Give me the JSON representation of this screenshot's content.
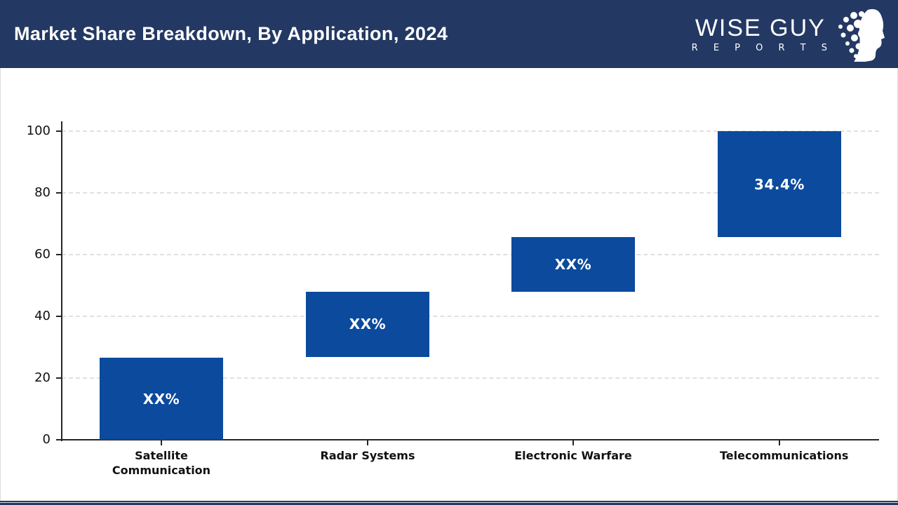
{
  "header": {
    "title": "Market Share Breakdown, By Application, 2024",
    "logo": {
      "line1": "WISE GUY",
      "line2": "R E P O R T S"
    }
  },
  "watermark": {
    "line1": "WISE GUY",
    "line2": "R E P O R T S"
  },
  "colors": {
    "header_bg": "#233963",
    "bar": "#0b4a9d",
    "bar_label": "#ffffff",
    "grid": "#e0e0e0",
    "axis": "#262626",
    "watermark": "#f2f2f2",
    "panel_border": "#d9d9d9"
  },
  "chart_data": {
    "type": "bar",
    "subtype": "floating-waterfall",
    "title": "Market Share Breakdown, By Application, 2024",
    "xlabel": "",
    "ylabel": "",
    "legend": "none",
    "grid": "horizontal-dashed",
    "ylim": [
      0,
      105
    ],
    "yticks": [
      0,
      20,
      40,
      60,
      80,
      100
    ],
    "categories": [
      "Satellite Communication",
      "Radar Systems",
      "Electronic Warfare",
      "Telecommunications"
    ],
    "bars": [
      {
        "category": "Satellite Communication",
        "start": 0,
        "end": 26.5,
        "value": 26.5,
        "label": "XX%"
      },
      {
        "category": "Radar Systems",
        "start": 26.8,
        "end": 48,
        "value": 21.2,
        "label": "XX%"
      },
      {
        "category": "Electronic Warfare",
        "start": 48,
        "end": 65.6,
        "value": 17.6,
        "label": "XX%"
      },
      {
        "category": "Telecommunications",
        "start": 65.6,
        "end": 100,
        "value": 34.4,
        "label": "34.4%"
      }
    ]
  }
}
